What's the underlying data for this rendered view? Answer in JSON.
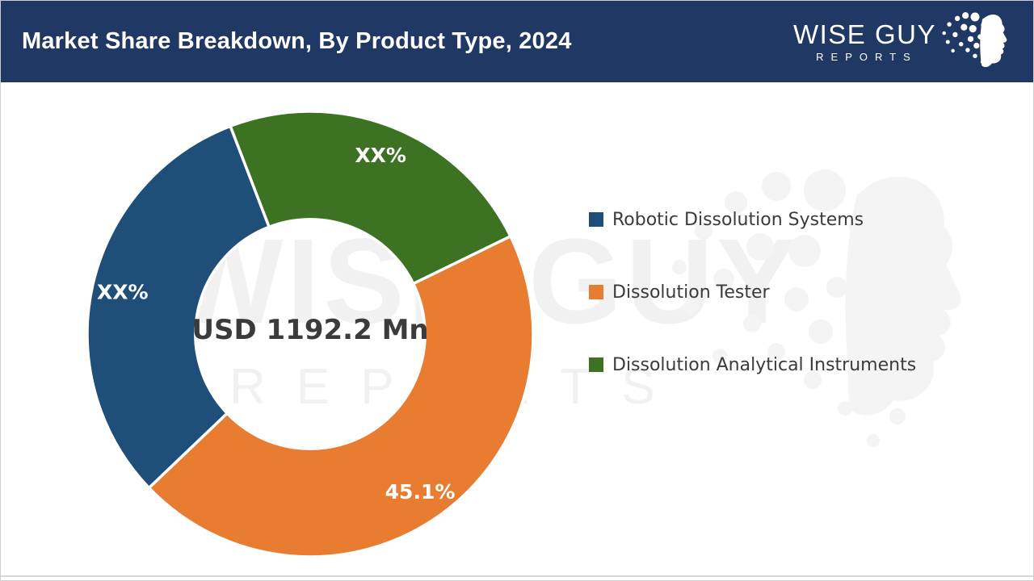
{
  "header": {
    "title": "Market Share Breakdown, By Product Type, 2024",
    "logo": {
      "line1": "WISE GUY",
      "line2": "REPORTS"
    }
  },
  "watermark": {
    "line1": "WISE GUY",
    "line2": "REPORTS"
  },
  "colors": {
    "header_bg": "#1F3864",
    "blue": "#1F4E79",
    "orange": "#E87D32",
    "green": "#3E7223",
    "text_dark": "#3B3B3B",
    "watermark_gray": "#F1F1F1",
    "border_gray": "#D6D6D6"
  },
  "chart_data": {
    "type": "pie",
    "subtype": "donut",
    "title": "Market Share Breakdown, By Product Type, 2024",
    "center_label": "USD 1192.2 Mn",
    "legend_position": "right",
    "donut_hole_ratio": 0.515,
    "start_angle_deg": -21,
    "note": "XX% slices are masked in the source image; their percentages are estimated from arc angles",
    "slices": [
      {
        "label": "Robotic Dissolution Systems",
        "color": "#1F4E79",
        "value_pct": 31.3,
        "display_label": "XX%",
        "masked": true
      },
      {
        "label": "Dissolution Tester",
        "color": "#E87D32",
        "value_pct": 45.1,
        "display_label": "45.1%",
        "masked": false
      },
      {
        "label": "Dissolution Analytical Instruments",
        "color": "#3E7223",
        "value_pct": 23.6,
        "display_label": "XX%",
        "masked": true
      }
    ]
  }
}
